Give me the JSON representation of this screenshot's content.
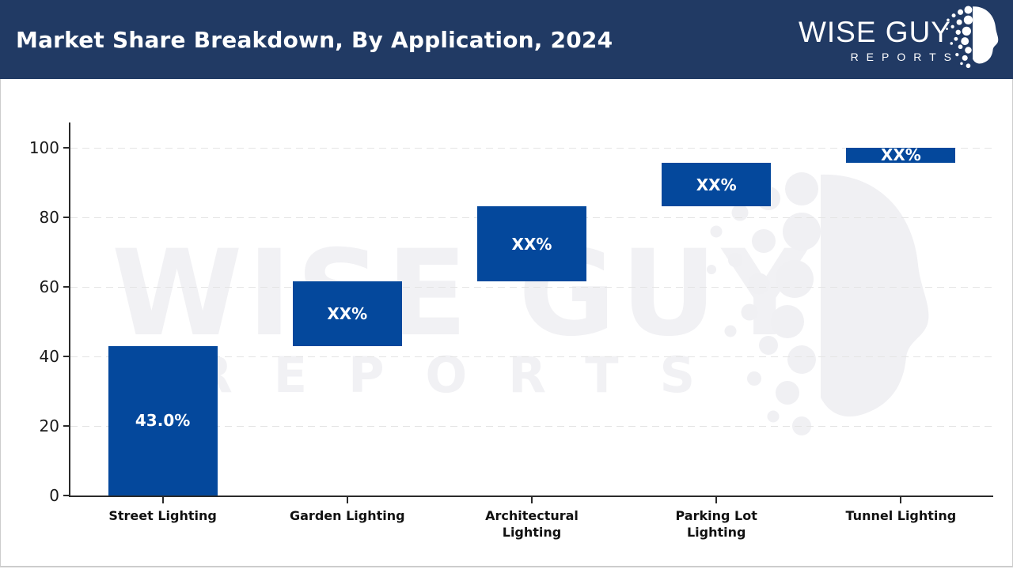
{
  "header": {
    "title": "Market Share Breakdown, By Application, 2024",
    "bg_color": "#213A64",
    "logo": {
      "line1": "WISE GUY",
      "line2": "REPORTS"
    }
  },
  "watermark": {
    "line1": "WISE GUY",
    "line2": "REPORTS"
  },
  "chart_data": {
    "type": "bar",
    "subtype": "waterfall",
    "title": "Market Share Breakdown, By Application, 2024",
    "categories": [
      "Street Lighting",
      "Garden Lighting",
      "Architectural Lighting",
      "Parking Lot Lighting",
      "Tunnel Lighting"
    ],
    "series": [
      {
        "name": "Market share by application (%)",
        "points": [
          {
            "category": "Street Lighting",
            "start": 0,
            "end": 43.0,
            "label": "43.0%"
          },
          {
            "category": "Garden Lighting",
            "start": 43.0,
            "end": 61.5,
            "label": "XX%"
          },
          {
            "category": "Architectural Lighting",
            "start": 61.5,
            "end": 83.0,
            "label": "XX%"
          },
          {
            "category": "Parking Lot Lighting",
            "start": 83.0,
            "end": 95.5,
            "label": "XX%"
          },
          {
            "category": "Tunnel Lighting",
            "start": 95.5,
            "end": 100.0,
            "label": "XX%"
          }
        ]
      }
    ],
    "xlabel": "",
    "ylabel": "",
    "ylim": [
      0,
      105
    ],
    "yticks": [
      0,
      20,
      40,
      60,
      80,
      100
    ],
    "grid": "horizontal dashed",
    "legend": "none",
    "bar_color": "#04489C",
    "bar_label_color": "#ffffff"
  }
}
